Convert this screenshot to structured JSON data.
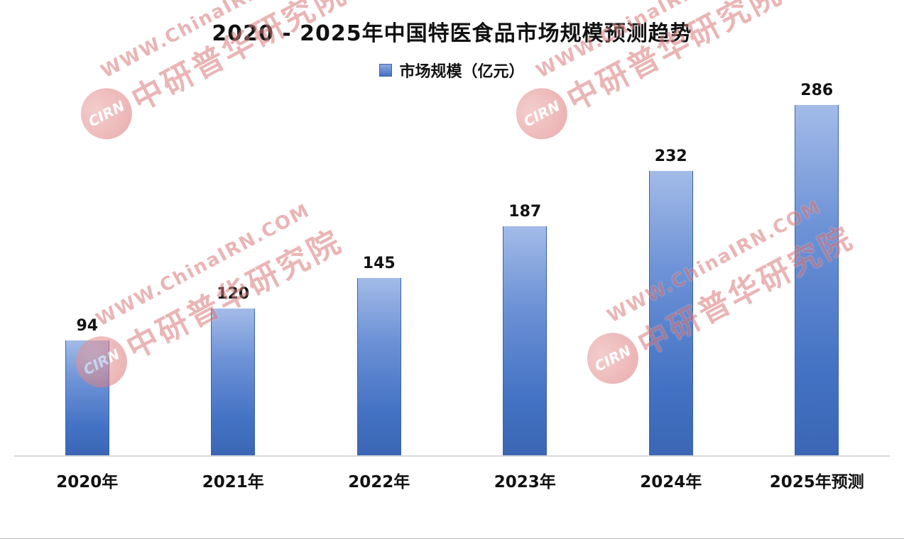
{
  "chart_data": {
    "type": "bar",
    "title": "2020 - 2025年中国特医食品市场规模预测趋势",
    "legend": [
      "市场规模（亿元）"
    ],
    "categories": [
      "2020年",
      "2021年",
      "2022年",
      "2023年",
      "2024年",
      "2025年预测"
    ],
    "values": [
      94,
      120,
      145,
      187,
      232,
      286
    ],
    "xlabel": "",
    "ylabel": "",
    "ylim": [
      0,
      300
    ],
    "grid": false,
    "legend_position": "top",
    "bar_color": "#4472C4"
  },
  "watermark": {
    "line1": "WWW.ChinaIRN.COM",
    "line2": "中研普华研究院",
    "badge": "CIRN",
    "color": "#D97A7A"
  }
}
